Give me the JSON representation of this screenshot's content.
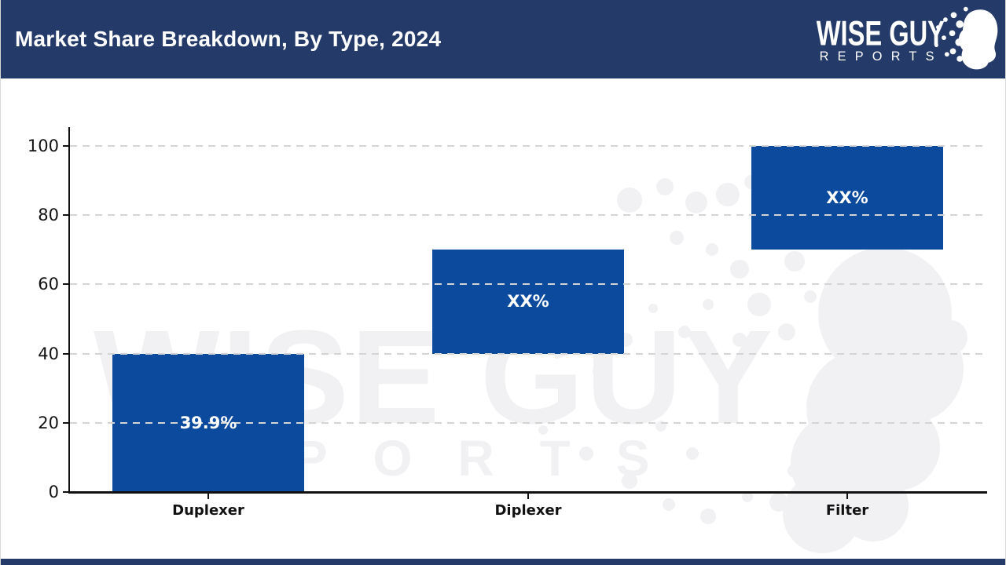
{
  "header": {
    "title": "Market Share Breakdown, By Type, 2024",
    "logo": {
      "name": "WISE GUY",
      "sub": "REPORTS"
    }
  },
  "watermark": {
    "line1": "WISE GUY",
    "line2": "REPORTS"
  },
  "colors": {
    "header_bg": "#243A68",
    "footer_bg": "#243A68",
    "bar": "#0C4A9E",
    "watermark": "#F1F1F3",
    "grid": "#D4D4D4",
    "axis": "#111111",
    "title_text": "#FFFFFF",
    "bar_label_text": "#FFFFFF"
  },
  "chart_data": {
    "type": "bar",
    "variant": "waterfall",
    "title": "Market Share Breakdown, By Type, 2024",
    "categories": [
      "Duplexer",
      "Diplexer",
      "Filter"
    ],
    "bars": [
      {
        "category": "Duplexer",
        "start": 0,
        "end": 39.9,
        "value_label": "39.9%"
      },
      {
        "category": "Diplexer",
        "start": 40,
        "end": 70,
        "value_label": "XX%"
      },
      {
        "category": "Filter",
        "start": 70,
        "end": 100,
        "value_label": "XX%"
      }
    ],
    "xlabel": "",
    "ylabel": "",
    "ylim": [
      0,
      105
    ],
    "yticks": [
      0,
      20,
      40,
      60,
      80,
      100
    ],
    "grid": "horizontal-dashed",
    "legend": "none",
    "bar_color": "#0C4A9E"
  }
}
